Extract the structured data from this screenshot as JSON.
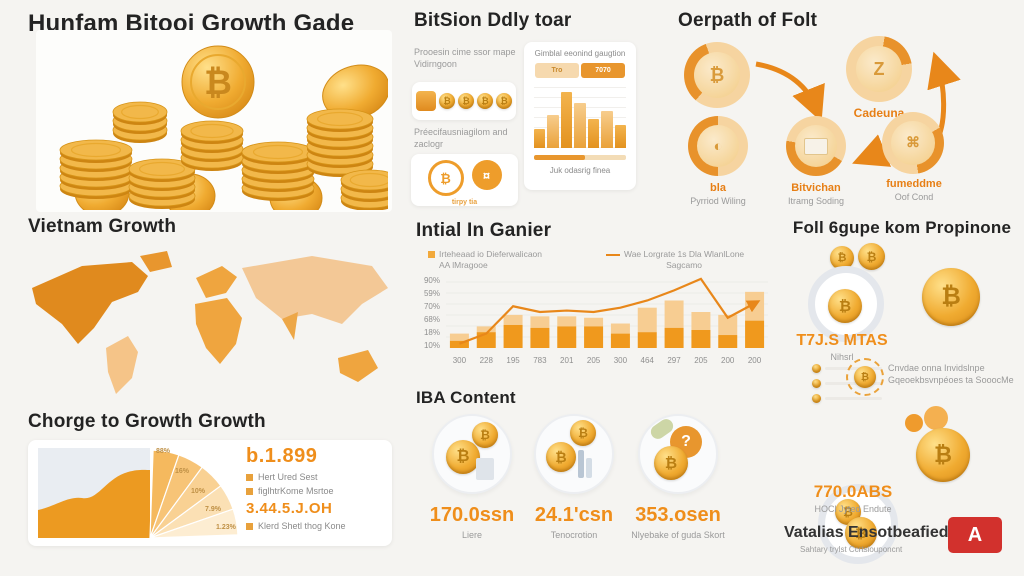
{
  "page": {
    "title": "Hunfam Bitooi Growth Gade"
  },
  "colors": {
    "accent": "#EF8E1B",
    "accent_dark": "#E8871A",
    "bar_light": "#F7CD92",
    "bar_dark": "#F0991D",
    "logo_red": "#D2312D"
  },
  "daily": {
    "title": "BitSion Ddly toar",
    "note1": "Prooesin cime ssor mape Vidirngoon",
    "note2": "Préecifausniagilom and zaclogr",
    "pair_caption": "tirpy tia"
  },
  "flow": {
    "title": "Oerpath of Folt",
    "nodes": [
      {
        "label": "Cadeuna",
        "sub": ""
      },
      {
        "label": "bla",
        "sub": "Pyrriod Wiling"
      },
      {
        "label": "Bitvichan",
        "sub": "Itramg Soding"
      },
      {
        "label": "fumeddme",
        "sub": "Oof Cond"
      }
    ]
  },
  "map": {
    "title": "Vietnam Growth"
  },
  "ganier": {
    "title": "Intial In Ganier",
    "legend1_l1": "Irteheaad io Dieferwalicaon",
    "legend1_l2": "AA lMragooe",
    "legend2_l1": "Wae Lorgrate 1s Dla WlanlLone",
    "legend2_l2": "Sagcamo"
  },
  "iba": {
    "title": "IBA Content",
    "stats": [
      {
        "value": "170.0ssn",
        "label": "Liere"
      },
      {
        "value": "24.1'csn",
        "label": "Tenocrotion"
      },
      {
        "value": "353.osen",
        "label": "Nlyebake of guda Skort"
      }
    ]
  },
  "propinone": {
    "title": "Foll 6gupe kom Propinone",
    "stat1": {
      "value": "T7J.S MTAS",
      "label": "Nihsrl"
    },
    "note": "Cnvdae onna Invidslnpe Gqeoekbsvnpéoes ta SooocMe",
    "stat2": {
      "value": "770.0ABS",
      "label": "HOCl Jyted Endute"
    }
  },
  "footer": {
    "brand": "Vatalias Ensotbeafiedr",
    "sub": "Sahtary trylst Ccrtsiouponcnt",
    "logo_letter": "A"
  },
  "chart_data": [
    {
      "id": "global-panel",
      "type": "bar",
      "title": "Gimblal eeonind gaugtion",
      "tabs": [
        "Tro",
        "7070"
      ],
      "values": [
        30,
        52,
        88,
        70,
        46,
        58,
        36
      ],
      "progress_pct": 55,
      "caption": "Juk odasrig finea",
      "grid": true
    },
    {
      "id": "ganier",
      "type": "bar+line",
      "title": "Intial In Ganier",
      "categories": [
        "300",
        "228",
        "195",
        "783",
        "201",
        "205",
        "300",
        "464",
        "297",
        "205",
        "200",
        "200"
      ],
      "series": [
        {
          "name": "Irteheaad io Dieferwalicaon AA lMragooe (dark stacked)",
          "values": [
            10,
            22,
            32,
            28,
            30,
            30,
            20,
            22,
            28,
            25,
            18,
            38
          ]
        },
        {
          "name": "total bar height (light top)",
          "values": [
            20,
            30,
            46,
            44,
            44,
            42,
            34,
            56,
            66,
            50,
            46,
            78
          ]
        },
        {
          "name": "Wae Lorgrate 1s Dla WlanlLone Sagcamo (line)",
          "values": [
            6,
            20,
            58,
            50,
            52,
            50,
            56,
            66,
            80,
            96,
            42,
            62
          ]
        }
      ],
      "y_ticks": [
        "90%",
        "59%",
        "70%",
        "68%",
        "18%",
        "10%"
      ],
      "ylim": [
        0,
        100
      ],
      "legend_position": "top",
      "grid": true
    },
    {
      "id": "chorge-area",
      "type": "area",
      "title": "Chorge to Growth Growth",
      "fan_labels": [
        "88%",
        "16%",
        "10%",
        "7.9%",
        "1.23%"
      ],
      "stat1": {
        "value": "b.1.899",
        "label": "Hert Ured Sest"
      },
      "legend_mid": "figlhtrKome Msrtoe",
      "stat2": {
        "value": "3.44.5.J.OH",
        "label": "Klerd Shetl thog Kone"
      }
    }
  ]
}
